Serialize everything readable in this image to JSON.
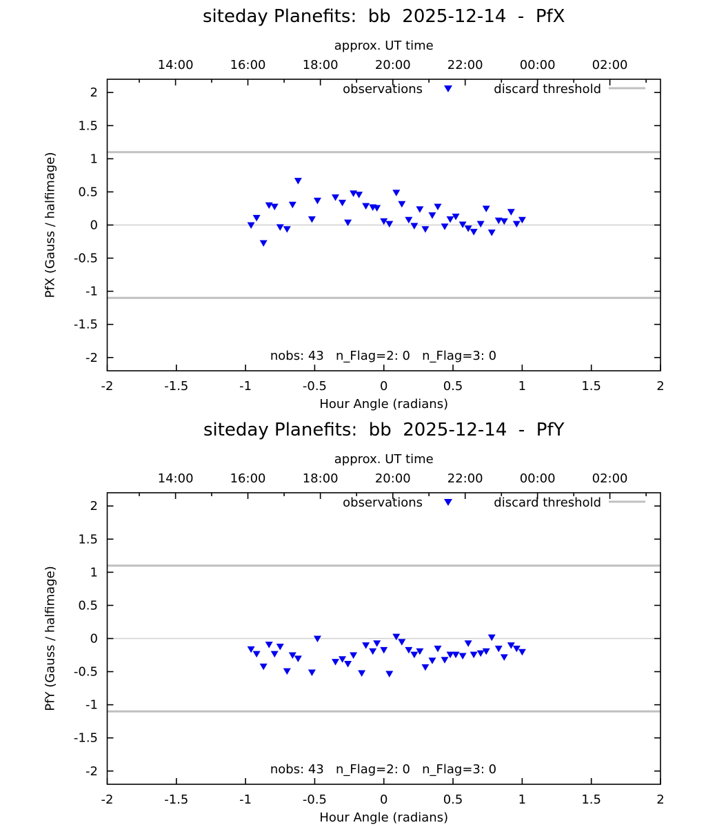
{
  "chart_data": [
    {
      "type": "scatter",
      "title": "siteday Planefits:  bb  2025-12-14  -  PfX",
      "top_axis_label": "approx. UT time",
      "top_axis_ticks": [
        {
          "label": "14:00",
          "x": -1.506
        },
        {
          "label": "16:00",
          "x": -0.983
        },
        {
          "label": "18:00",
          "x": -0.459
        },
        {
          "label": "20:00",
          "x": 0.065
        },
        {
          "label": "22:00",
          "x": 0.588
        },
        {
          "label": "00:00",
          "x": 1.111
        },
        {
          "label": "02:00",
          "x": 1.634
        }
      ],
      "top_axis_minor_ticks": [
        -1.768,
        -1.245,
        -0.721,
        -0.197,
        0.326,
        0.85,
        1.373,
        1.896
      ],
      "xlabel": "Hour Angle (radians)",
      "ylabel": "PfX (Gauss / halfimage)",
      "xlim": [
        -2,
        2
      ],
      "ylim": [
        -2.2,
        2.2
      ],
      "x_ticks": [
        -2,
        -1.5,
        -1,
        -0.5,
        0,
        0.5,
        1,
        1.5,
        2
      ],
      "y_ticks": [
        2,
        1.5,
        1,
        0.5,
        0,
        -0.5,
        -1,
        -1.5,
        -2
      ],
      "legend": [
        {
          "label": "observations",
          "symbol": "triangle-down"
        },
        {
          "label": "discard threshold",
          "symbol": "line"
        }
      ],
      "discard_thresholds": [
        1.1,
        -1.1
      ],
      "zero_line": 0,
      "annotation": "nobs: 43   n_Flag=2: 0   n_Flag=3: 0",
      "marker_color": "#0000ee",
      "threshold_color": "#c0c0c0",
      "zero_line_color": "#d0d0d0",
      "series": [
        {
          "name": "observations",
          "x": [
            -0.96,
            -0.92,
            -0.87,
            -0.83,
            -0.79,
            -0.75,
            -0.7,
            -0.66,
            -0.62,
            -0.52,
            -0.48,
            -0.35,
            -0.3,
            -0.26,
            -0.22,
            -0.18,
            -0.13,
            -0.08,
            -0.05,
            0.0,
            0.04,
            0.09,
            0.13,
            0.18,
            0.22,
            0.26,
            0.3,
            0.35,
            0.39,
            0.44,
            0.48,
            0.52,
            0.57,
            0.61,
            0.65,
            0.7,
            0.74,
            0.78,
            0.83,
            0.87,
            0.92,
            0.96,
            1.0
          ],
          "y": [
            0.0,
            0.11,
            -0.27,
            0.3,
            0.28,
            -0.03,
            -0.06,
            0.31,
            0.67,
            0.09,
            0.37,
            0.42,
            0.34,
            0.04,
            0.48,
            0.46,
            0.29,
            0.27,
            0.26,
            0.06,
            0.02,
            0.49,
            0.32,
            0.08,
            -0.01,
            0.24,
            -0.06,
            0.15,
            0.28,
            -0.02,
            0.09,
            0.13,
            0.01,
            -0.05,
            -0.1,
            0.02,
            0.25,
            -0.11,
            0.07,
            0.06,
            0.2,
            0.02,
            0.08
          ]
        }
      ]
    },
    {
      "type": "scatter",
      "title": "siteday Planefits:  bb  2025-12-14  -  PfY",
      "top_axis_label": "approx. UT time",
      "top_axis_ticks": [
        {
          "label": "14:00",
          "x": -1.506
        },
        {
          "label": "16:00",
          "x": -0.983
        },
        {
          "label": "18:00",
          "x": -0.459
        },
        {
          "label": "20:00",
          "x": 0.065
        },
        {
          "label": "22:00",
          "x": 0.588
        },
        {
          "label": "00:00",
          "x": 1.111
        },
        {
          "label": "02:00",
          "x": 1.634
        }
      ],
      "top_axis_minor_ticks": [
        -1.768,
        -1.245,
        -0.721,
        -0.197,
        0.326,
        0.85,
        1.373,
        1.896
      ],
      "xlabel": "Hour Angle (radians)",
      "ylabel": "PfY (Gauss / halfimage)",
      "xlim": [
        -2,
        2
      ],
      "ylim": [
        -2.2,
        2.2
      ],
      "x_ticks": [
        -2,
        -1.5,
        -1,
        -0.5,
        0,
        0.5,
        1,
        1.5,
        2
      ],
      "y_ticks": [
        2,
        1.5,
        1,
        0.5,
        0,
        -0.5,
        -1,
        -1.5,
        -2
      ],
      "legend": [
        {
          "label": "observations",
          "symbol": "triangle-down"
        },
        {
          "label": "discard threshold",
          "symbol": "line"
        }
      ],
      "discard_thresholds": [
        1.1,
        -1.1
      ],
      "zero_line": 0,
      "annotation": "nobs: 43   n_Flag=2: 0   n_Flag=3: 0",
      "marker_color": "#0000ee",
      "threshold_color": "#c0c0c0",
      "zero_line_color": "#d0d0d0",
      "series": [
        {
          "name": "observations",
          "x": [
            -0.96,
            -0.92,
            -0.87,
            -0.83,
            -0.79,
            -0.75,
            -0.7,
            -0.66,
            -0.62,
            -0.52,
            -0.48,
            -0.35,
            -0.3,
            -0.26,
            -0.22,
            -0.16,
            -0.13,
            -0.08,
            -0.05,
            0.0,
            0.04,
            0.09,
            0.13,
            0.18,
            0.22,
            0.26,
            0.3,
            0.35,
            0.39,
            0.44,
            0.48,
            0.52,
            0.57,
            0.61,
            0.65,
            0.7,
            0.74,
            0.78,
            0.83,
            0.87,
            0.92,
            0.96,
            1.0
          ],
          "y": [
            -0.16,
            -0.23,
            -0.42,
            -0.09,
            -0.23,
            -0.12,
            -0.49,
            -0.25,
            -0.3,
            -0.51,
            0.0,
            -0.35,
            -0.31,
            -0.38,
            -0.25,
            -0.52,
            -0.1,
            -0.19,
            -0.07,
            -0.17,
            -0.53,
            0.03,
            -0.05,
            -0.17,
            -0.24,
            -0.19,
            -0.43,
            -0.33,
            -0.15,
            -0.32,
            -0.24,
            -0.24,
            -0.26,
            -0.07,
            -0.24,
            -0.22,
            -0.19,
            0.02,
            -0.15,
            -0.28,
            -0.1,
            -0.15,
            -0.2
          ]
        }
      ]
    }
  ]
}
